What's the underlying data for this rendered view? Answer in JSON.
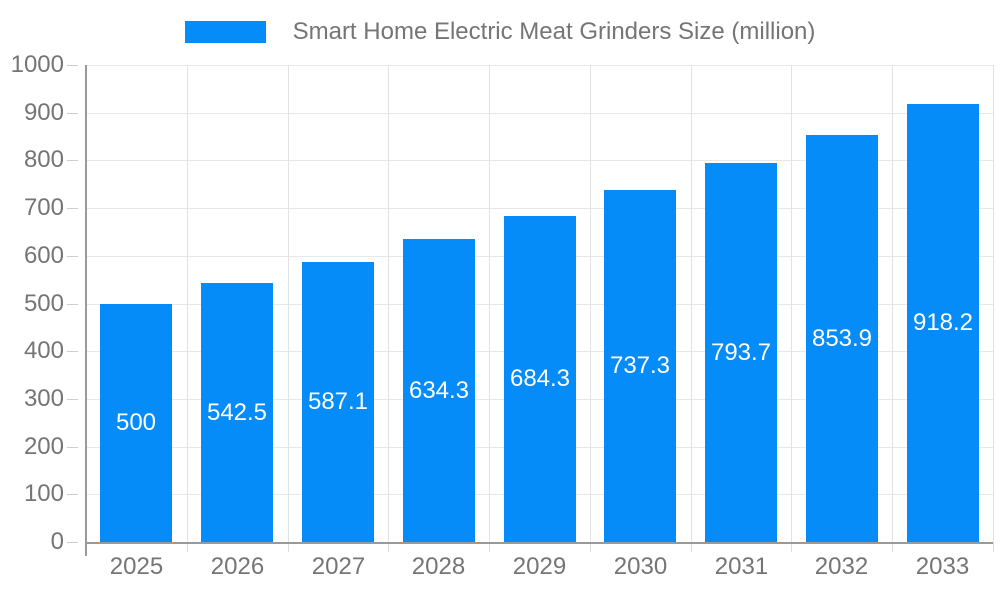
{
  "legend": {
    "label": "Smart Home Electric Meat Grinders Size (million)"
  },
  "chart_data": {
    "type": "bar",
    "title": "Smart Home Electric Meat Grinders Size (million)",
    "categories": [
      "2025",
      "2026",
      "2027",
      "2028",
      "2029",
      "2030",
      "2031",
      "2032",
      "2033"
    ],
    "values": [
      500,
      542.5,
      587.1,
      634.3,
      684.3,
      737.3,
      793.7,
      853.9,
      918.2
    ],
    "value_labels": [
      "500",
      "542.5",
      "587.1",
      "634.3",
      "684.3",
      "737.3",
      "793.7",
      "853.9",
      "918.2"
    ],
    "xlabel": "",
    "ylabel": "",
    "ylim": [
      0,
      1000
    ],
    "y_ticks": [
      0,
      100,
      200,
      300,
      400,
      500,
      600,
      700,
      800,
      900,
      1000
    ],
    "grid": true,
    "legend_position": "top",
    "bar_color": "#068cf9",
    "bar_label_color": "#ffffff",
    "axis_text_color": "#757575",
    "gridline_color": "#e8e8e8",
    "axis_line_color": "#9a9a9a"
  }
}
